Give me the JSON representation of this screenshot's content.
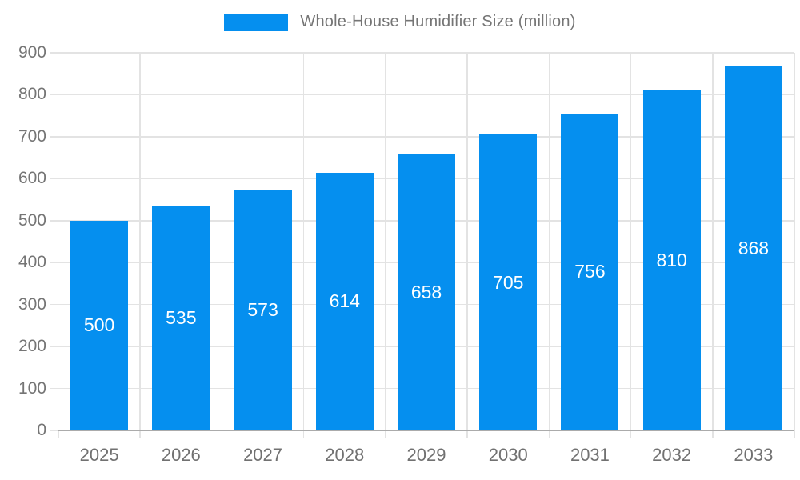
{
  "legend": {
    "label": "Whole-House Humidifier Size (million)"
  },
  "colors": {
    "bar": "#058fef",
    "grid": "#e3e3e3",
    "axis": "#ababab",
    "tick_label": "#757575",
    "value_label": "#ffffff",
    "background": "#ffffff"
  },
  "chart_data": {
    "type": "bar",
    "title": "Whole-House Humidifier Size (million)",
    "categories": [
      "2025",
      "2026",
      "2027",
      "2028",
      "2029",
      "2030",
      "2031",
      "2032",
      "2033"
    ],
    "values": [
      500,
      535,
      573,
      614,
      658,
      705,
      756,
      810,
      868
    ],
    "yticks": [
      0,
      100,
      200,
      300,
      400,
      500,
      600,
      700,
      800,
      900
    ],
    "xlabel": "",
    "ylabel": "",
    "ylim": [
      0,
      900
    ],
    "grid": true,
    "legend_position": "top",
    "value_label_position": "inside-center"
  }
}
